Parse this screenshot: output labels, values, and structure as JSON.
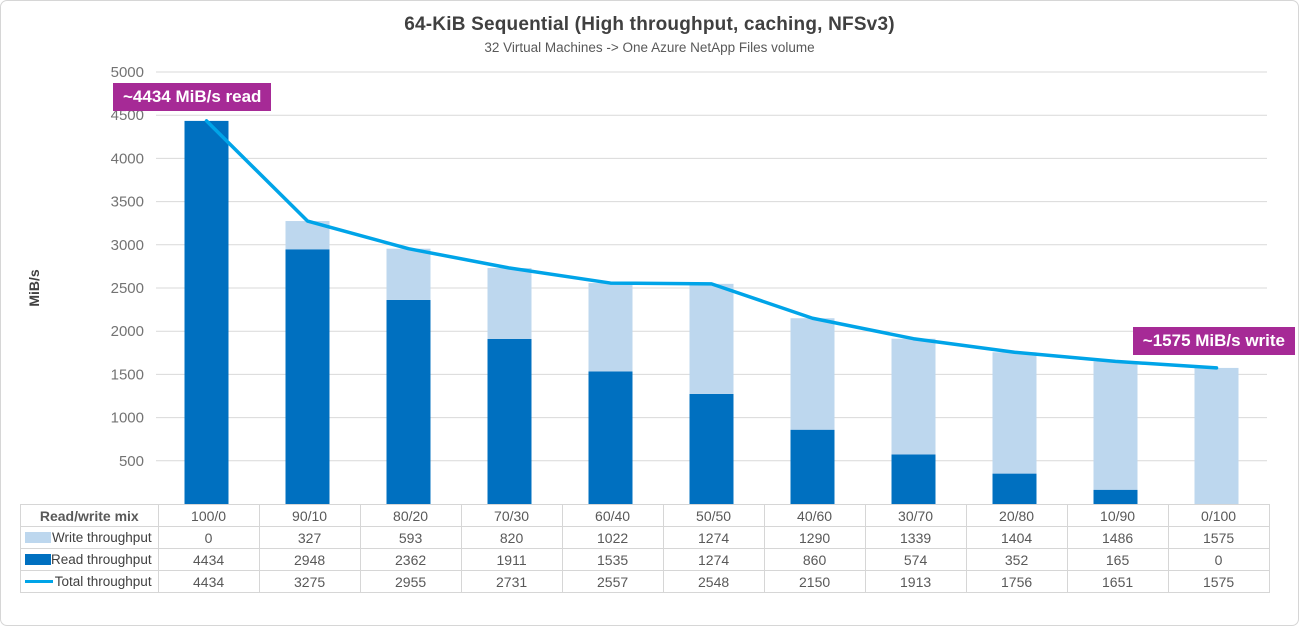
{
  "header": {
    "title": "64-KiB Sequential (High throughput, caching, NFSv3)",
    "subtitle": "32 Virtual Machines -> One Azure NetApp Files volume"
  },
  "chart_data": {
    "type": "bar",
    "subtype": "stacked-bars-with-total-line-overlay-and-data-table",
    "title": "64-KiB Sequential (High throughput, caching, NFSv3)",
    "subtitle": "32 Virtual Machines -> One Azure NetApp Files volume",
    "categories": [
      "100/0",
      "90/10",
      "80/20",
      "70/30",
      "60/40",
      "50/50",
      "40/60",
      "30/70",
      "20/80",
      "10/90",
      "0/100"
    ],
    "series": [
      {
        "name": "Write throughput",
        "render": "bar",
        "stack": "top",
        "color": "#BDD7EE",
        "values": [
          0,
          327,
          593,
          820,
          1022,
          1274,
          1290,
          1339,
          1404,
          1486,
          1575
        ]
      },
      {
        "name": "Read throughput",
        "render": "bar",
        "stack": "bottom",
        "color": "#0070C0",
        "values": [
          4434,
          2948,
          2362,
          1911,
          1535,
          1274,
          860,
          574,
          352,
          165,
          0
        ]
      },
      {
        "name": "Total throughput",
        "render": "line",
        "color": "#00A4E8",
        "values": [
          4434,
          3275,
          2955,
          2731,
          2557,
          2548,
          2150,
          1913,
          1756,
          1651,
          1575
        ]
      }
    ],
    "xlabel": "Read/write mix",
    "ylabel": "MiB/s",
    "ylim": [
      0,
      5000
    ],
    "yticks": [
      5000,
      4500,
      4000,
      3500,
      3000,
      2500,
      2000,
      1500,
      1000,
      500
    ],
    "grid": true,
    "legend_position": "data-table-left-column"
  },
  "annotations": {
    "read_peak": {
      "text": "~4434 MiB/s read",
      "bg": "#A62A96",
      "fg": "#FFFFFF"
    },
    "write_peak": {
      "text": "~1575 MiB/s write",
      "bg": "#A62A96",
      "fg": "#FFFFFF"
    }
  },
  "table": {
    "corner_label": "Read/write mix"
  },
  "colors": {
    "read_bar": "#0070C0",
    "write_bar": "#BDD7EE",
    "total_line": "#00A4E8",
    "annotation_bg": "#A62A96",
    "grid_line": "#D9D9D9",
    "axis_text": "#737373",
    "title_text": "#404040",
    "table_border": "#D6D6D6"
  }
}
